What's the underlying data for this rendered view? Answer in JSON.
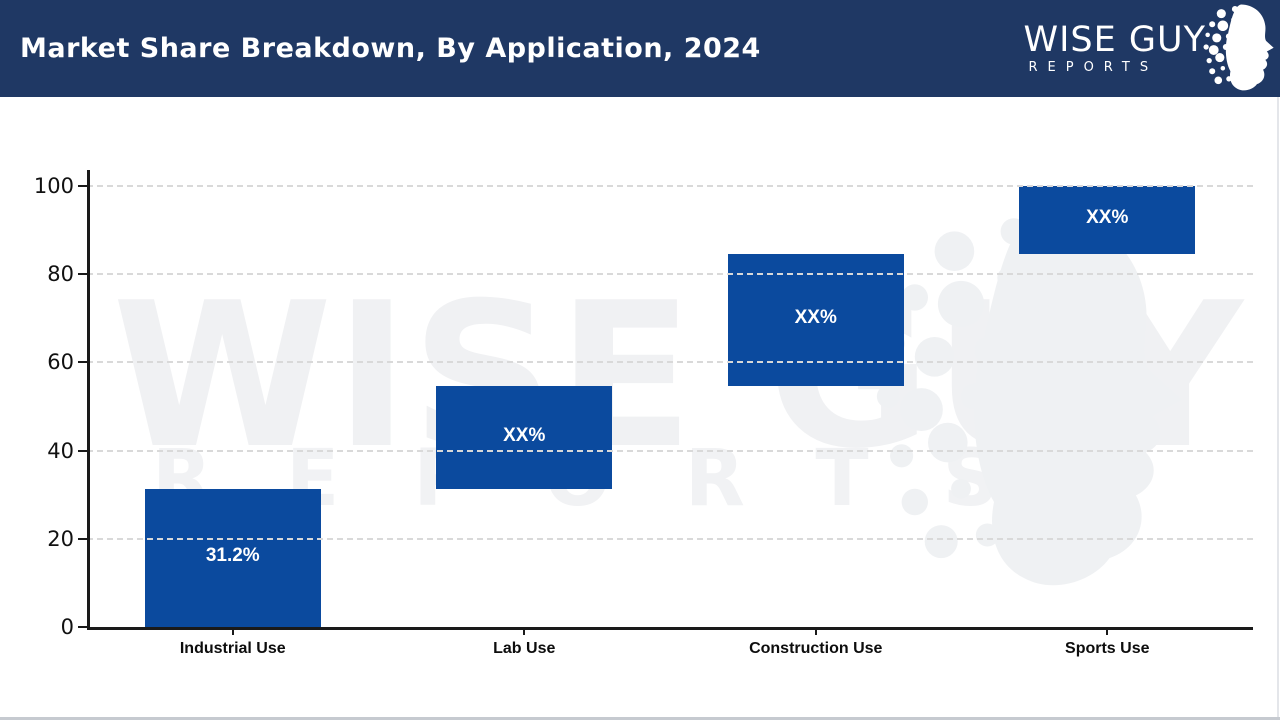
{
  "header": {
    "title": "Market Share Breakdown, By Application, 2024",
    "logo": {
      "line1": "WISE GUY",
      "line2": "REPORTS"
    }
  },
  "watermark": {
    "line1": "WISE GUY",
    "line2": "REPORTS"
  },
  "chart_data": {
    "type": "bar",
    "subtype": "waterfall",
    "title": "Market Share Breakdown, By Application, 2024",
    "categories": [
      "Industrial Use",
      "Lab Use",
      "Construction Use",
      "Sports Use"
    ],
    "segments": [
      {
        "category": "Industrial Use",
        "start": 0,
        "end": 31.2,
        "label": "31.2%"
      },
      {
        "category": "Lab Use",
        "start": 31.2,
        "end": 54.6,
        "label": "XX%"
      },
      {
        "category": "Construction Use",
        "start": 54.6,
        "end": 84.6,
        "label": "XX%"
      },
      {
        "category": "Sports Use",
        "start": 84.6,
        "end": 100,
        "label": "XX%"
      }
    ],
    "ylim": [
      0,
      100
    ],
    "yticks": [
      0,
      20,
      40,
      60,
      80,
      100
    ],
    "xlabel": "",
    "ylabel": "",
    "grid": "dashed-horizontal, drawn over bars",
    "legend": "none",
    "colors": {
      "bar": "#0b4a9e",
      "bar_label": "#ffffff",
      "axis": "#1a1a1a",
      "grid": "#d9d9d9",
      "tick_label": "#111111",
      "header_bg": "#1f3864",
      "watermark": "#f0f1f3"
    }
  }
}
